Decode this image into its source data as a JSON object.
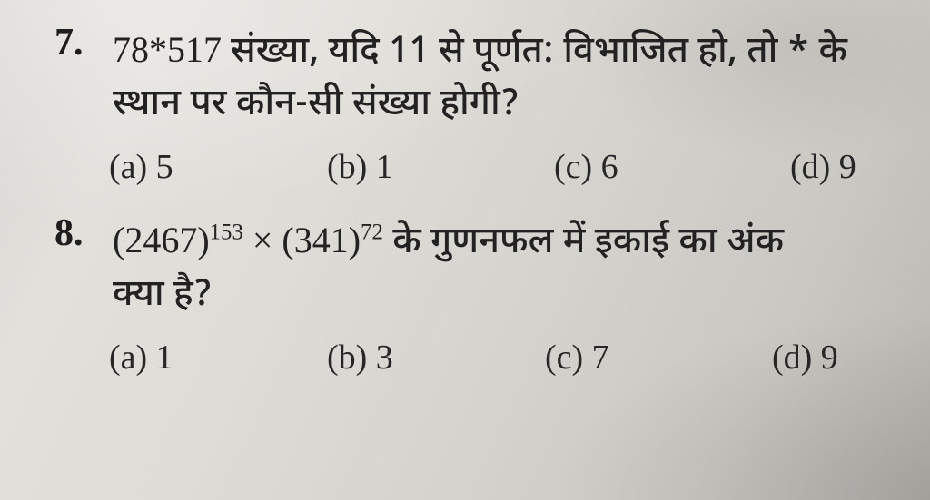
{
  "text_color": "#2a2a2a",
  "background_gradient": [
    "#d8d6d2",
    "#e2e0db",
    "#dedcd6",
    "#d6d4ce",
    "#cac8c2",
    "#b8b6b0"
  ],
  "font_family_devanagari": "Noto Sans Devanagari",
  "font_family_latin": "Times New Roman",
  "question_number_fontsize": 42,
  "question_text_fontsize": 40,
  "option_fontsize": 38,
  "questions": [
    {
      "number": "7.",
      "line1_pre": "78*517 ",
      "line1_dev": "संख्या, यदि 11 से पूर्णत: विभाजित हो, तो * के",
      "line2": "स्थान पर कौन-सी संख्या होगी?",
      "options": [
        {
          "label": "(a) 5"
        },
        {
          "label": "(b) 1"
        },
        {
          "label": "(c) 6"
        },
        {
          "label": "(d) 9"
        }
      ]
    },
    {
      "number": "8.",
      "expr_base1": "(2467)",
      "expr_exp1": "153",
      "expr_times": " × ",
      "expr_base2": "(341)",
      "expr_exp2": "72",
      "line1_dev": " के गुणनफल में इकाई का अंक",
      "line2": "क्या है?",
      "options": [
        {
          "label": "(a) 1"
        },
        {
          "label": "(b) 3"
        },
        {
          "label": "(c) 7"
        },
        {
          "label": "(d) 9"
        }
      ]
    }
  ]
}
